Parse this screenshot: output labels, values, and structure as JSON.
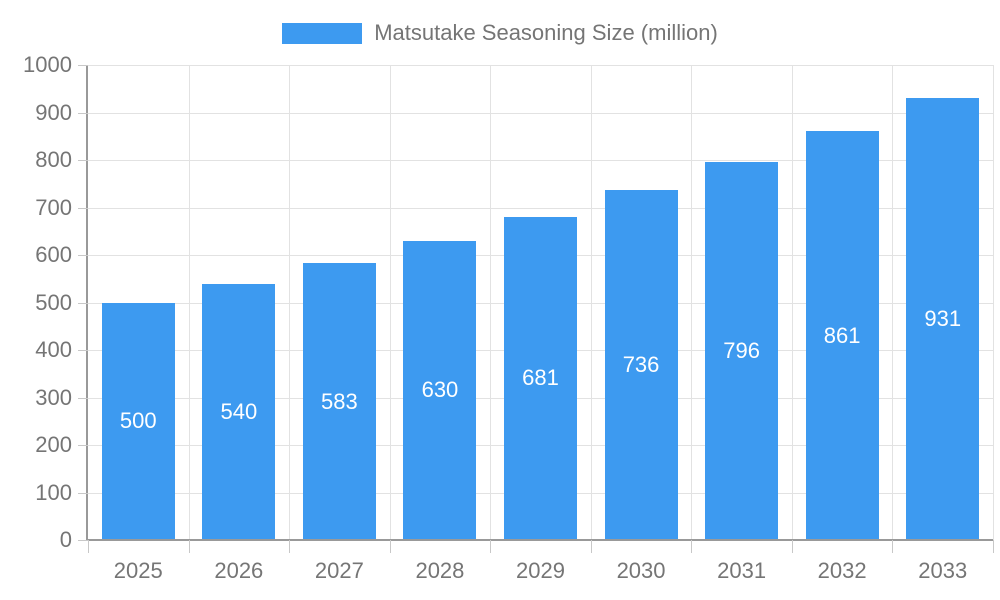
{
  "legend": {
    "label": "Matsutake Seasoning Size (million)"
  },
  "chart_data": {
    "type": "bar",
    "title": "",
    "xlabel": "",
    "ylabel": "",
    "categories": [
      "2025",
      "2026",
      "2027",
      "2028",
      "2029",
      "2030",
      "2031",
      "2032",
      "2033"
    ],
    "series": [
      {
        "name": "Matsutake Seasoning Size (million)",
        "values": [
          500,
          540,
          583,
          630,
          681,
          736,
          796,
          861,
          931
        ]
      }
    ],
    "value_labels_shown": true,
    "ylim": [
      0,
      1000
    ],
    "ytick_interval": 100,
    "yticks": [
      0,
      100,
      200,
      300,
      400,
      500,
      600,
      700,
      800,
      900,
      1000
    ],
    "grid": true,
    "legend_position": "top",
    "colors": {
      "bar": "#3d9af0",
      "value_label": "#ffffff",
      "axis_text": "#757575",
      "axis_line": "#999999",
      "gridline": "#e2e2e2",
      "tick": "#c8c8c8",
      "background": "#ffffff"
    }
  }
}
